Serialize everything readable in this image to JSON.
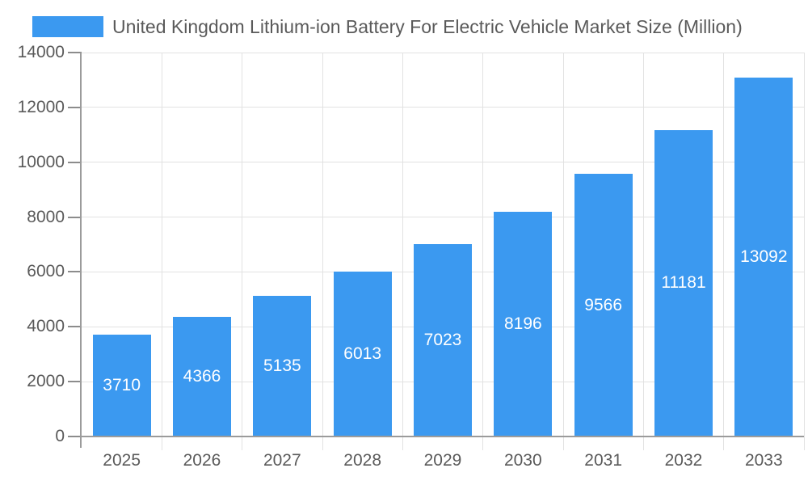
{
  "legend": {
    "label": "United Kingdom Lithium-ion Battery For Electric Vehicle Market Size (Million)"
  },
  "colors": {
    "bar": "#3B99F0",
    "bar_label": "#FFFFFF",
    "grid": "#E2E2E2",
    "axis": "#9B9B9B",
    "tick": "#8C8C8C",
    "text": "#5A5A5A"
  },
  "chart_data": {
    "type": "bar",
    "title": "United Kingdom Lithium-ion Battery For Electric Vehicle Market Size (Million)",
    "categories": [
      "2025",
      "2026",
      "2027",
      "2028",
      "2029",
      "2030",
      "2031",
      "2032",
      "2033"
    ],
    "values": [
      3710,
      4366,
      5135,
      6013,
      7023,
      8196,
      9566,
      11181,
      13092
    ],
    "xlabel": "",
    "ylabel": "",
    "ylim": [
      0,
      14000
    ],
    "ytick_step": 2000,
    "y_ticks": [
      0,
      2000,
      4000,
      6000,
      8000,
      10000,
      12000,
      14000
    ],
    "grid": true,
    "legend_position": "top-left",
    "bar_labels_inside": true
  }
}
